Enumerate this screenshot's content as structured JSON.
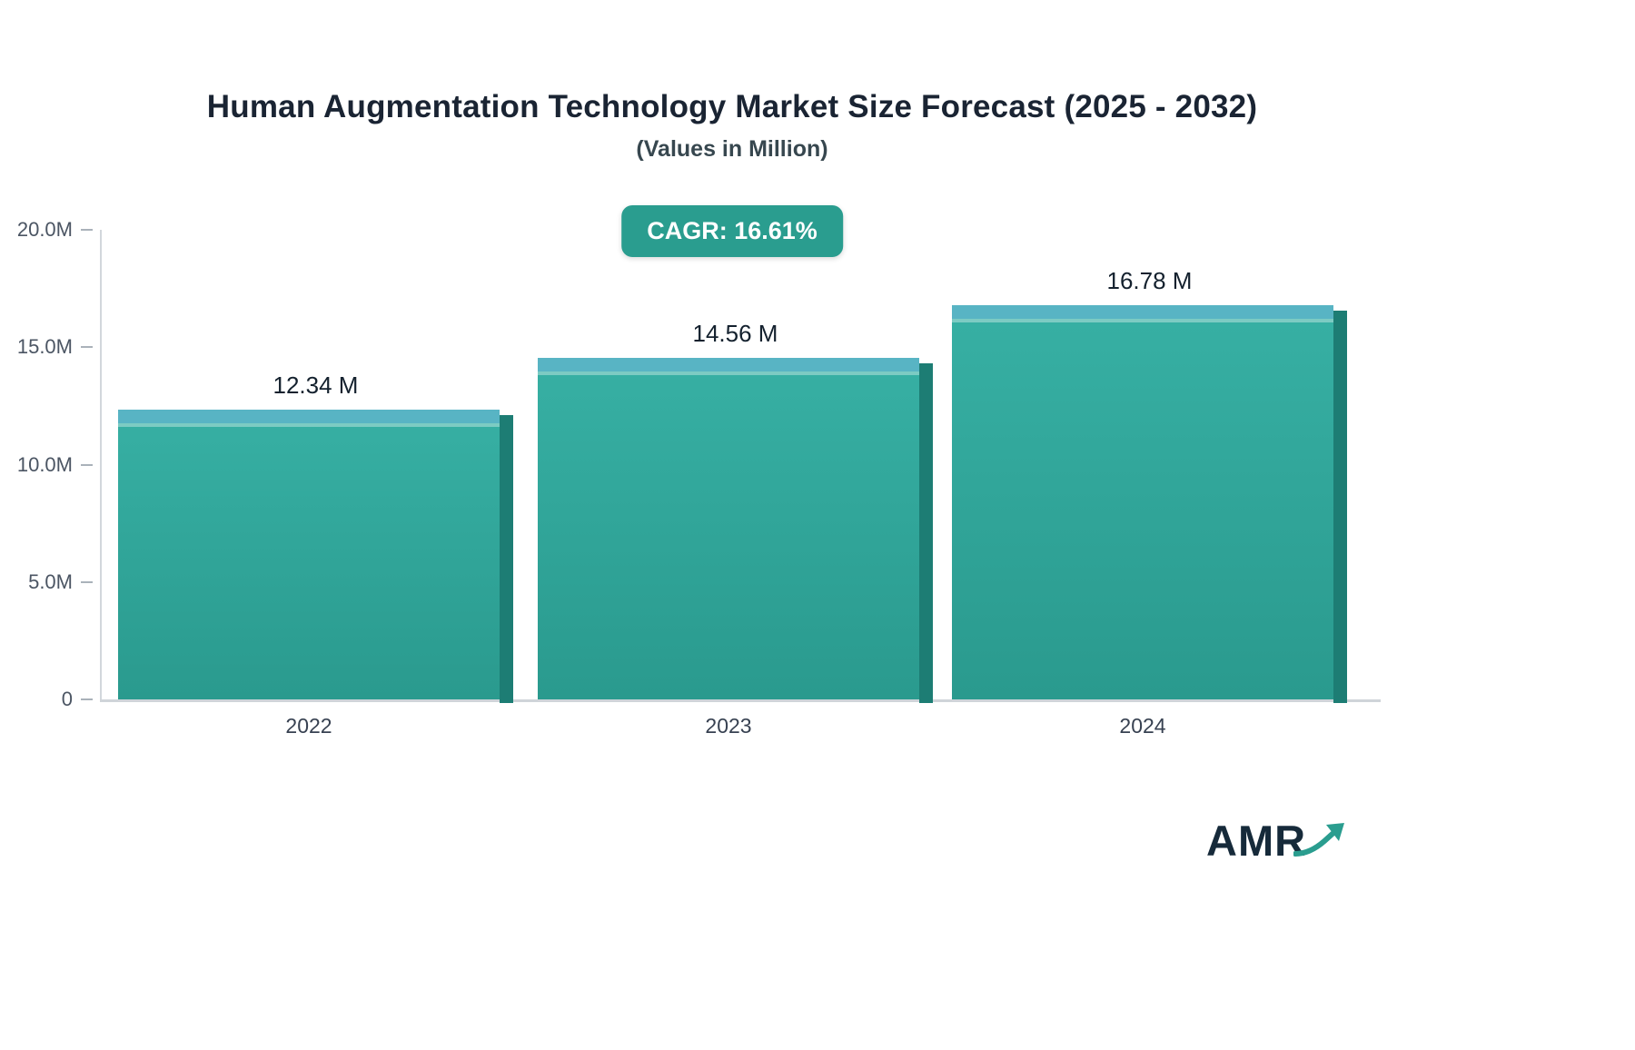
{
  "page": {
    "title": "Human Augmentation Technology Market Size Forecast (2025 - 2032)",
    "subtitle": "(Values in Million)",
    "cagr_label": "CAGR: 16.61%",
    "logo_text": "AMR"
  },
  "chart_data": {
    "type": "bar",
    "title": "Human Augmentation Technology Market Size Forecast (2025 - 2032)",
    "subtitle": "(Values in Million)",
    "annotation": "CAGR: 16.61%",
    "categories": [
      "2022",
      "2023",
      "2024"
    ],
    "values": [
      12.34,
      14.56,
      16.78
    ],
    "value_labels": [
      "12.34 M",
      "14.56 M",
      "16.78 M"
    ],
    "unit": "Million",
    "xlabel": "",
    "ylabel": "",
    "ylim": [
      0,
      20
    ],
    "yticks": [
      {
        "value": 0,
        "label": "0"
      },
      {
        "value": 5,
        "label": "5.0M"
      },
      {
        "value": 10,
        "label": "10.0M"
      },
      {
        "value": 15,
        "label": "15.0M"
      },
      {
        "value": 20,
        "label": "20.0M"
      }
    ],
    "grid": false,
    "legend": "none",
    "colors": {
      "bar_gradient_top": "#37b0a4",
      "bar_gradient_bottom": "#2a9a8e",
      "bar_top_face": "#58b4c4",
      "bar_side_face": "#1d7d74",
      "badge_bg": "#2a9d8f",
      "accent": "#2a9d8f"
    }
  }
}
